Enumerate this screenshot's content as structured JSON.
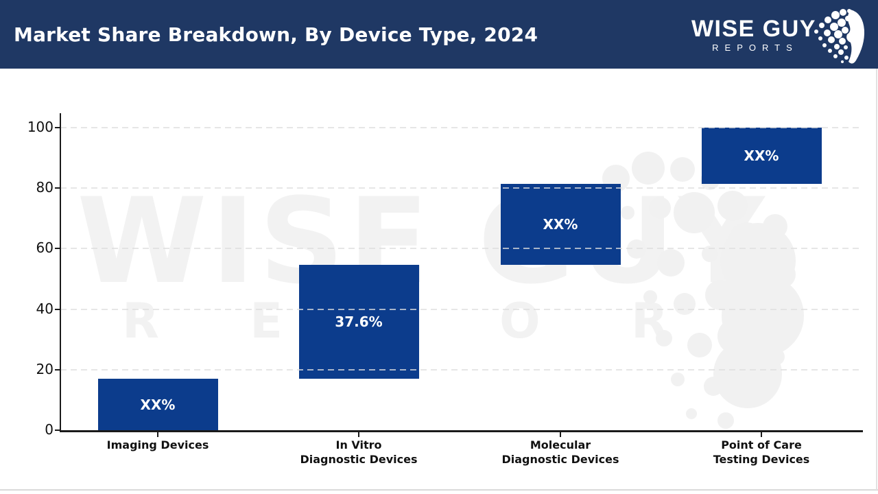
{
  "header": {
    "title": "Market Share Breakdown, By Device Type, 2024",
    "bg_color": "#1F3864",
    "logo": {
      "line1": "WISE GUY",
      "line2": "REPORTS"
    }
  },
  "watermark": {
    "line1": "WISE GUY",
    "line2": "REPORTS"
  },
  "chart_data": {
    "type": "bar",
    "variant": "waterfall",
    "title": "Market Share Breakdown, By Device Type, 2024",
    "categories": [
      "Imaging Devices",
      "In Vitro Diagnostic Devices",
      "Molecular Diagnostic Devices",
      "Point of Care Testing Devices"
    ],
    "category_lines": [
      [
        "Imaging Devices"
      ],
      [
        "In Vitro",
        "Diagnostic Devices"
      ],
      [
        "Molecular",
        "Diagnostic Devices"
      ],
      [
        "Point of Care",
        "Testing Devices"
      ]
    ],
    "bars": [
      {
        "label": "XX%",
        "start": 0,
        "end": 17
      },
      {
        "label": "37.6%",
        "start": 17,
        "end": 54.6
      },
      {
        "label": "XX%",
        "start": 54.6,
        "end": 81.4
      },
      {
        "label": "XX%",
        "start": 81.4,
        "end": 100
      }
    ],
    "yticks": [
      0,
      20,
      40,
      60,
      80,
      100
    ],
    "ylim": [
      0,
      105
    ],
    "xlabel": "",
    "ylabel": "",
    "bar_color": "#0C3C8C",
    "grid": {
      "axis": "y",
      "style": "dashed",
      "color": "#e0e0e0"
    },
    "legend": null
  }
}
